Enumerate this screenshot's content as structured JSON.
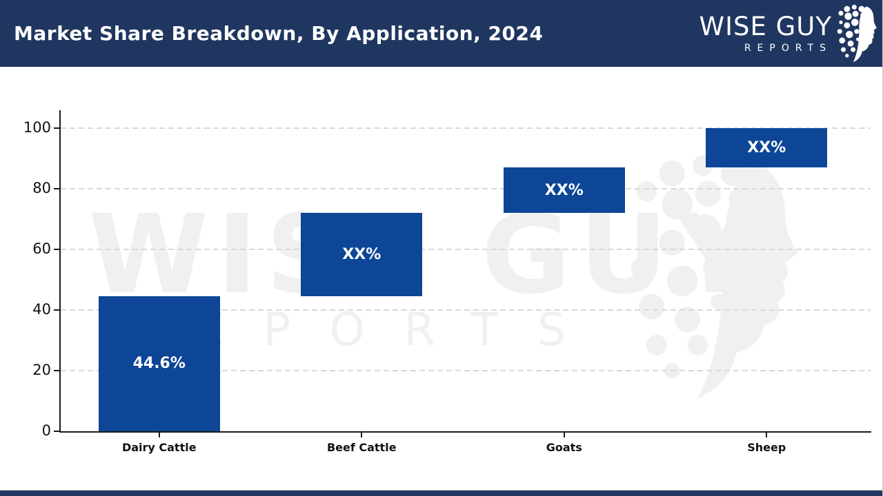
{
  "header": {
    "title": "Market Share Breakdown, By Application, 2024",
    "logo": {
      "line1": "WISE GUY",
      "line2": "REPORTS"
    }
  },
  "watermark": {
    "line1": "WISE GUY",
    "line2": "REPORTS"
  },
  "colors": {
    "header_bg": "#1f3660",
    "bar": "#0d4696",
    "grid": "#d9d9d9",
    "axis": "#1a1a1a",
    "watermark": "#f0f0f0",
    "bar_label": "#ffffff"
  },
  "chart_data": {
    "type": "bar",
    "subtype": "waterfall",
    "title": "Market Share Breakdown, By Application, 2024",
    "categories": [
      "Dairy Cattle",
      "Beef Cattle",
      "Goats",
      "Sheep"
    ],
    "segments": [
      {
        "category": "Dairy Cattle",
        "start": 0,
        "end": 44.6,
        "label": "44.6%"
      },
      {
        "category": "Beef Cattle",
        "start": 44.6,
        "end": 72,
        "label": "XX%"
      },
      {
        "category": "Goats",
        "start": 72,
        "end": 87,
        "label": "XX%"
      },
      {
        "category": "Sheep",
        "start": 87,
        "end": 100,
        "label": "XX%"
      }
    ],
    "xlabel": "",
    "ylabel": "",
    "ylim": [
      0,
      100
    ],
    "yticks": [
      0,
      20,
      40,
      60,
      80,
      100
    ],
    "grid": "horizontal-dashed",
    "legend": "none",
    "bar_color": "#0d4696"
  }
}
